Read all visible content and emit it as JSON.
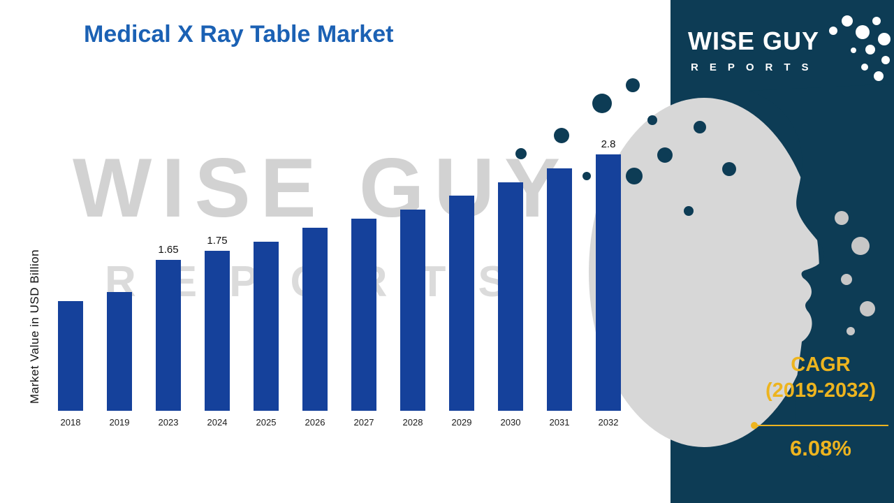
{
  "title": "Medical X Ray Table Market",
  "y_axis_label": "Market Value in USD Billion",
  "watermark": {
    "line1": "WISE GUY",
    "line2": "REPORTS"
  },
  "logo": {
    "line1": "WISE GUY",
    "line2": "REPORTS"
  },
  "sidebar": {
    "cagr_label": "CAGR",
    "cagr_range": "(2019-2032)",
    "cagr_value": "6.08%"
  },
  "colors": {
    "bar": "#15419b",
    "title": "#1b61b4",
    "sidebar": "#0d3c55",
    "accent": "#edb41f",
    "watermark": "#d7d7d7"
  },
  "chart_data": {
    "type": "bar",
    "title": "Medical X Ray Table Market",
    "xlabel": "",
    "ylabel": "Market Value in USD Billion",
    "ylim": [
      0,
      3
    ],
    "unit": "USD Billion",
    "categories": [
      "2018",
      "2019",
      "2023",
      "2024",
      "2025",
      "2026",
      "2027",
      "2028",
      "2029",
      "2030",
      "2031",
      "2032"
    ],
    "values": [
      1.2,
      1.3,
      1.65,
      1.75,
      1.85,
      2.0,
      2.1,
      2.2,
      2.35,
      2.5,
      2.65,
      2.8
    ],
    "data_labels": [
      "",
      "",
      "1.65",
      "1.75",
      "",
      "",
      "",
      "",
      "",
      "",
      "",
      "2.8"
    ],
    "legend": [],
    "grid": false
  }
}
